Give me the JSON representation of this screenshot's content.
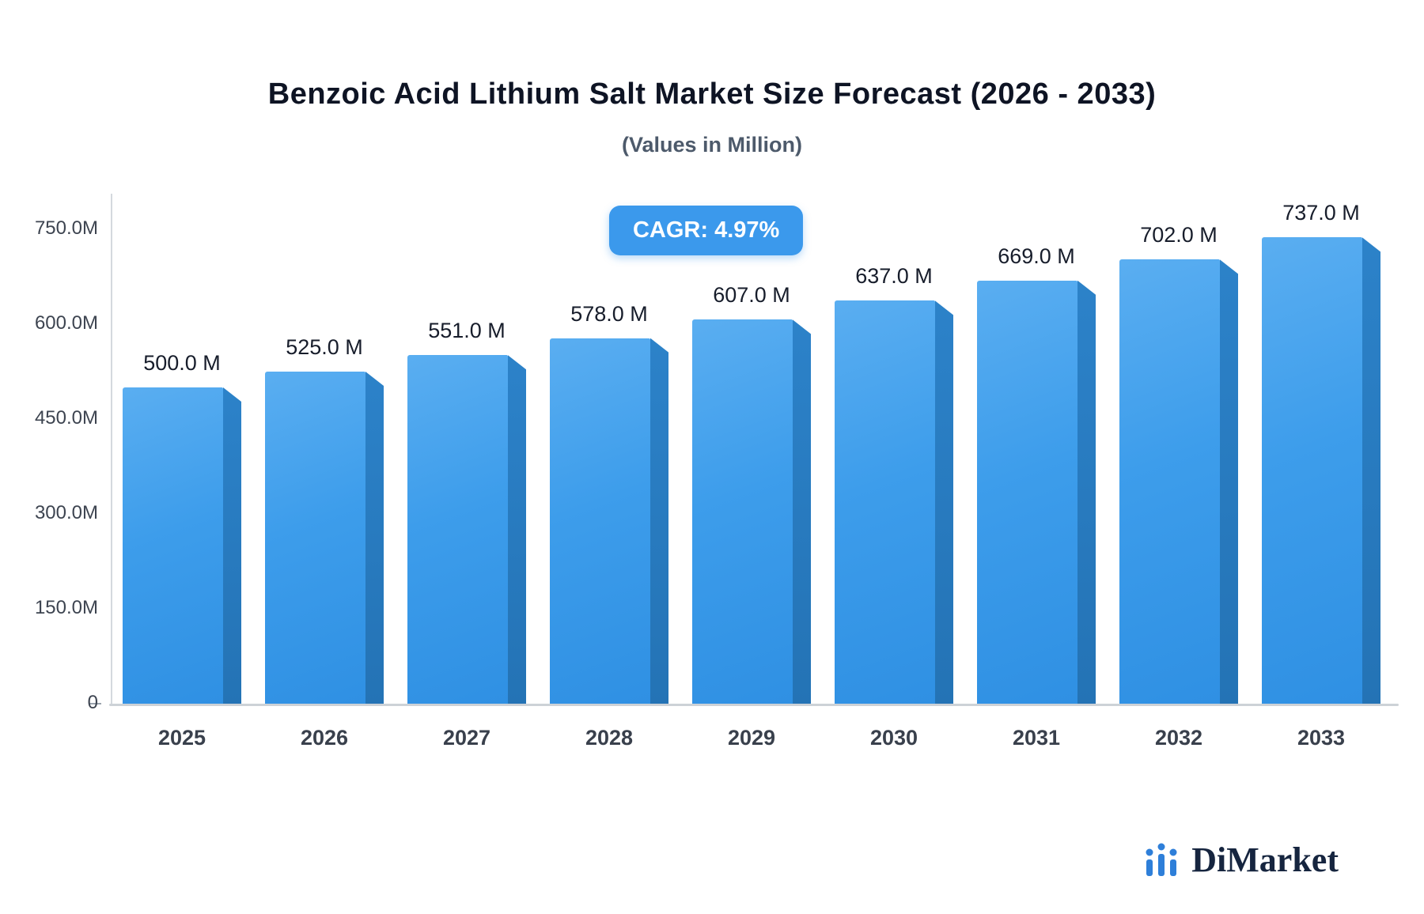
{
  "header": {
    "title": "Benzoic Acid Lithium Salt Market Size Forecast (2026 - 2033)",
    "subtitle": "(Values in Million)"
  },
  "badge": {
    "label": "CAGR: 4.97%",
    "bg_color": "#3b99ec",
    "text_color": "#ffffff"
  },
  "chart_data": {
    "type": "bar",
    "title": "Benzoic Acid Lithium Salt Market Size Forecast (2026 - 2033)",
    "subtitle": "(Values in Million)",
    "categories": [
      "2025",
      "2026",
      "2027",
      "2028",
      "2029",
      "2030",
      "2031",
      "2032",
      "2033"
    ],
    "values": [
      500.0,
      525.0,
      551.0,
      578.0,
      607.0,
      637.0,
      669.0,
      702.0,
      737.0
    ],
    "value_labels": [
      "500.0 M",
      "525.0 M",
      "551.0 M",
      "578.0 M",
      "607.0 M",
      "637.0 M",
      "669.0 M",
      "702.0 M",
      "737.0 M"
    ],
    "xlabel": "",
    "ylabel": "",
    "ylim": [
      0,
      750
    ],
    "yticks": [
      {
        "value": 750,
        "label": "750.0M"
      },
      {
        "value": 600,
        "label": "600.0M"
      },
      {
        "value": 450,
        "label": "450.0M"
      },
      {
        "value": 300,
        "label": "300.0M"
      },
      {
        "value": 150,
        "label": "150.0M"
      },
      {
        "value": 0,
        "label": "0"
      }
    ],
    "grid": false,
    "legend": false,
    "bar_color_top": "#5aaef1",
    "bar_color_bottom": "#2f90e3",
    "bar_side_color": "#2473b5"
  },
  "logo": {
    "text": "DiMarket",
    "icon": "bar-chart-logo-icon",
    "text_color": "#16253f",
    "icon_color": "#2e7fd9"
  }
}
